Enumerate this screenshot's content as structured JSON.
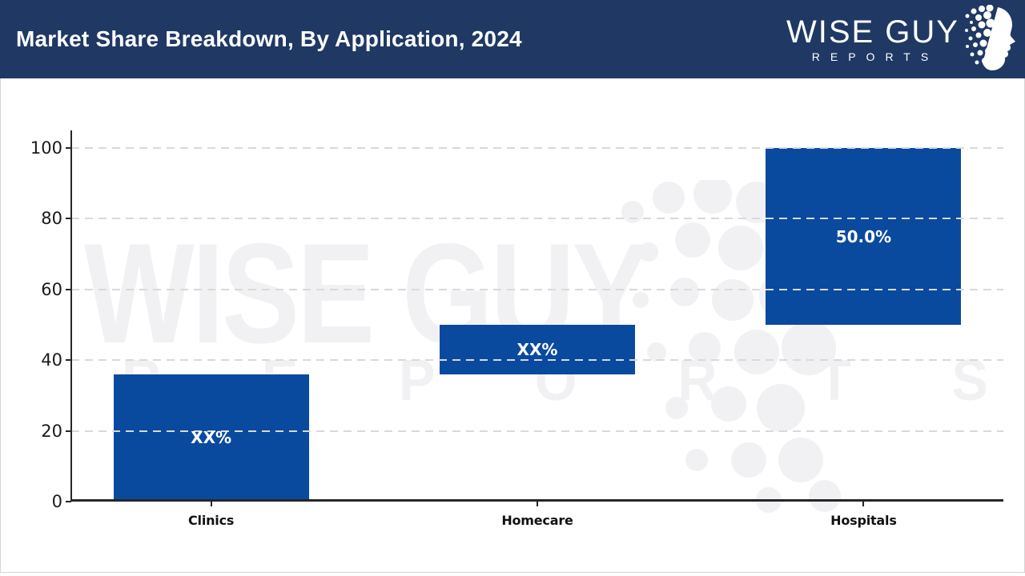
{
  "header": {
    "title": "Market Share Breakdown, By Application, 2024",
    "bg_color": "#1f3864",
    "logo": {
      "line1": "WISE GUY",
      "line2": "REPORTS"
    }
  },
  "watermark": {
    "line1": "WISE GUY",
    "line2": "R E P O R T S"
  },
  "chart_data": {
    "type": "bar",
    "variant": "floating-segment waterfall (market share breakdown)",
    "title": "Market Share Breakdown, By Application, 2024",
    "categories": [
      "Clinics",
      "Homecare",
      "Hospitals"
    ],
    "segments": [
      {
        "category": "Clinics",
        "start": 0,
        "end": 36,
        "value_label": "XX%"
      },
      {
        "category": "Homecare",
        "start": 36,
        "end": 50,
        "value_label": "XX%"
      },
      {
        "category": "Hospitals",
        "start": 50,
        "end": 100,
        "value_label": "50.0%"
      }
    ],
    "yticks": [
      0,
      20,
      40,
      60,
      80,
      100
    ],
    "ylim": [
      0,
      105
    ],
    "xlabel": "",
    "ylabel": "",
    "grid": "horizontal-dashed",
    "legend": "none",
    "bar_color": "#0a4a9e",
    "bar_label_color": "#ffffff"
  },
  "colors": {
    "page_bg": "#ffffff",
    "header_bg": "#1f3864",
    "header_text": "#ffffff",
    "bar": "#0a4a9e",
    "axis": "#262626",
    "tick_text": "#1a1a1a",
    "grid": "#d9d9d9",
    "watermark": "#f1f1f3",
    "border": "#d4d4d4"
  }
}
